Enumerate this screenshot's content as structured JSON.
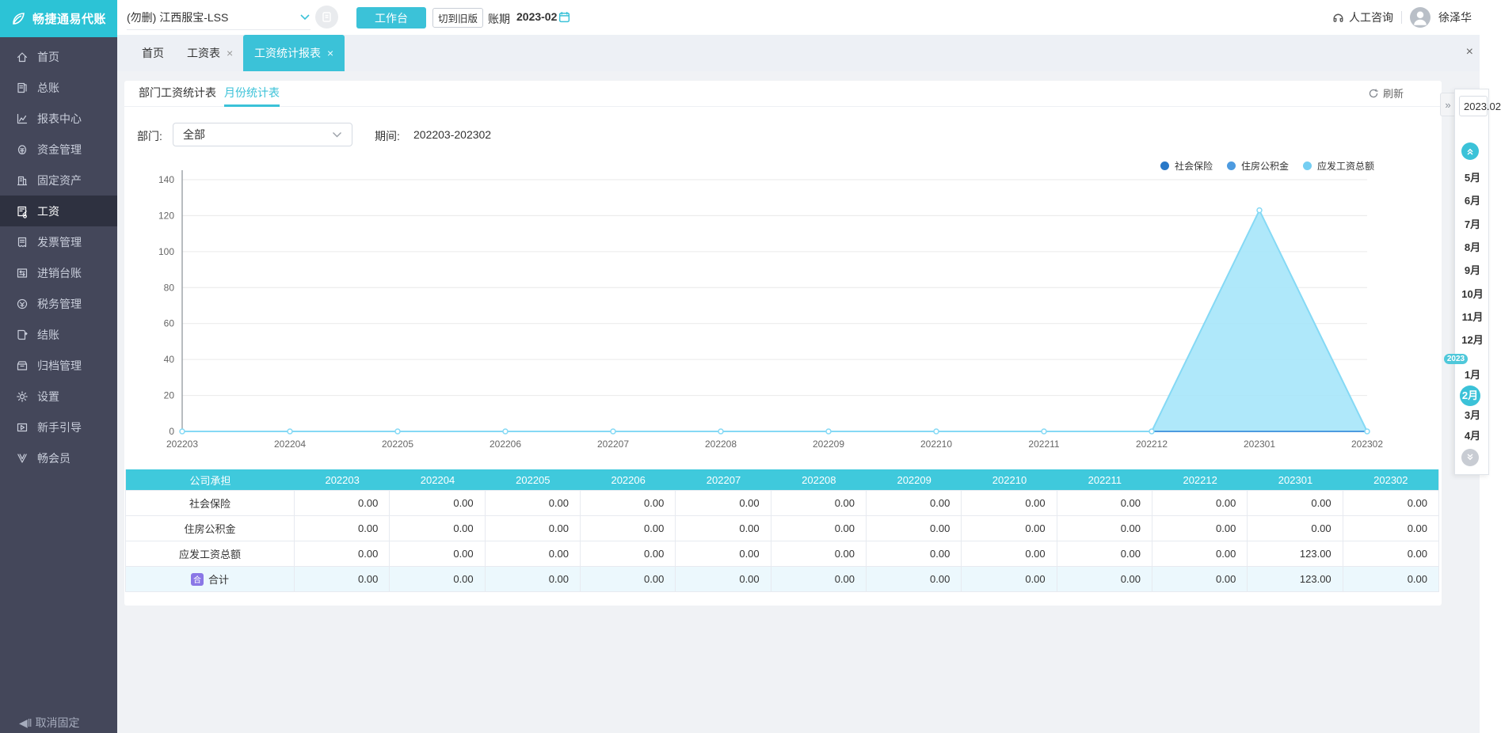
{
  "brand": {
    "name": "畅捷通易代账"
  },
  "sidebar": {
    "items": [
      {
        "label": "首页",
        "icon": "home-icon",
        "active": false
      },
      {
        "label": "总账",
        "icon": "ledger-icon",
        "active": false
      },
      {
        "label": "报表中心",
        "icon": "report-icon",
        "active": false
      },
      {
        "label": "资金管理",
        "icon": "funds-icon",
        "active": false
      },
      {
        "label": "固定资产",
        "icon": "building-icon",
        "active": false
      },
      {
        "label": "工资",
        "icon": "salary-icon",
        "active": true
      },
      {
        "label": "发票管理",
        "icon": "invoice-icon",
        "active": false
      },
      {
        "label": "进销台账",
        "icon": "trade-icon",
        "active": false
      },
      {
        "label": "税务管理",
        "icon": "tax-icon",
        "active": false
      },
      {
        "label": "结账",
        "icon": "closing-icon",
        "active": false
      },
      {
        "label": "归档管理",
        "icon": "archive-icon",
        "active": false
      },
      {
        "label": "设置",
        "icon": "gear-icon",
        "active": false
      },
      {
        "label": "新手引导",
        "icon": "guide-icon",
        "active": false
      },
      {
        "label": "畅会员",
        "icon": "member-icon",
        "active": false
      }
    ],
    "unpin_label": "取消固定"
  },
  "topbar": {
    "company": "(勿删) 江西服宝-LSS",
    "workbench": "工作台",
    "switch_old": "切到旧版",
    "period_label": "账期",
    "period_value": "2023-02",
    "consult": "人工咨询",
    "username": "徐泽华"
  },
  "tabs": [
    {
      "label": "首页",
      "closable": false,
      "active": false
    },
    {
      "label": "工资表",
      "closable": true,
      "active": false
    },
    {
      "label": "工资统计报表",
      "closable": true,
      "active": true
    }
  ],
  "subtabs": [
    {
      "label": "部门工资统计表",
      "active": false
    },
    {
      "label": "月份统计表",
      "active": true
    }
  ],
  "toolbar": {
    "refresh": "刷新"
  },
  "filters": {
    "dept_label": "部门:",
    "dept_value": "全部",
    "range_label": "期间:",
    "range_value": "202203-202302"
  },
  "chart_data": {
    "type": "area",
    "categories": [
      "202203",
      "202204",
      "202205",
      "202206",
      "202207",
      "202208",
      "202209",
      "202210",
      "202211",
      "202212",
      "202301",
      "202302"
    ],
    "series": [
      {
        "name": "社会保险",
        "color": "#2878c8",
        "values": [
          0,
          0,
          0,
          0,
          0,
          0,
          0,
          0,
          0,
          0,
          0,
          0
        ]
      },
      {
        "name": "住房公积金",
        "color": "#4d9be0",
        "values": [
          0,
          0,
          0,
          0,
          0,
          0,
          0,
          0,
          0,
          0,
          0,
          0
        ]
      },
      {
        "name": "应发工资总额",
        "color": "#74cef2",
        "values": [
          0,
          0,
          0,
          0,
          0,
          0,
          0,
          0,
          0,
          0,
          123,
          0
        ]
      }
    ],
    "area_fill": "#a6e5fa",
    "area_line": "#85d9f5",
    "title": "",
    "xlabel": "",
    "ylabel": "",
    "ylim": [
      0,
      140
    ],
    "ytick_step": 20,
    "grid": true,
    "legend_position": "top-right"
  },
  "table": {
    "header": [
      "公司承担",
      "202203",
      "202204",
      "202205",
      "202206",
      "202207",
      "202208",
      "202209",
      "202210",
      "202211",
      "202212",
      "202301",
      "202302"
    ],
    "rows": [
      {
        "label": "社会保险",
        "values": [
          "0.00",
          "0.00",
          "0.00",
          "0.00",
          "0.00",
          "0.00",
          "0.00",
          "0.00",
          "0.00",
          "0.00",
          "0.00",
          "0.00"
        ]
      },
      {
        "label": "住房公积金",
        "values": [
          "0.00",
          "0.00",
          "0.00",
          "0.00",
          "0.00",
          "0.00",
          "0.00",
          "0.00",
          "0.00",
          "0.00",
          "0.00",
          "0.00"
        ]
      },
      {
        "label": "应发工资总额",
        "values": [
          "0.00",
          "0.00",
          "0.00",
          "0.00",
          "0.00",
          "0.00",
          "0.00",
          "0.00",
          "0.00",
          "0.00",
          "123.00",
          "0.00"
        ]
      }
    ],
    "total_row": {
      "label": "合计",
      "icon_text": "合",
      "values": [
        "0.00",
        "0.00",
        "0.00",
        "0.00",
        "0.00",
        "0.00",
        "0.00",
        "0.00",
        "0.00",
        "0.00",
        "123.00",
        "0.00"
      ]
    }
  },
  "month_panel": {
    "current": "2023.02",
    "months_prev_year": [
      "5月",
      "6月",
      "7月",
      "8月",
      "9月",
      "10月",
      "11月",
      "12月"
    ],
    "year_badge": "2023",
    "months_cur_year": [
      "1月",
      "2月",
      "3月",
      "4月"
    ],
    "selected": "2月"
  },
  "colors": {
    "accent": "#3bc2d8",
    "table_header": "#3fc9dc",
    "sidebar_bg": "#44475a",
    "logo_bg": "#2cc3d6"
  }
}
